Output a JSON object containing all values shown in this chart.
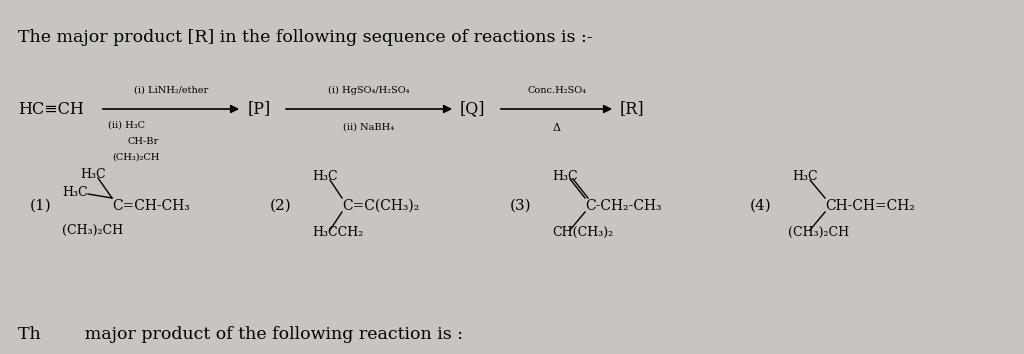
{
  "background_color": "#c8c4c0",
  "title_text": "The major product [R] in the following sequence of reactions is :-",
  "title_fontsize": 12.5,
  "reaction": {
    "hcch": "HC≡CH",
    "r1_top": "(i) LiNH₂/ether",
    "r1_bot1": "(ii) H₃C",
    "r1_bot2": "CH-Br",
    "r1_bot3": "(CH₃)₂CH",
    "p": "[P]",
    "r2_top": "(i) HgSO₄/H₂SO₄",
    "r2_bot": "(ii) NaBH₄",
    "q": "[Q]",
    "r3_top": "Conc.H₂SO₄",
    "r3_bot": "Δ",
    "r": "[R]"
  },
  "options": [
    {
      "num": "(1)",
      "top": "H₃C",
      "mid": "H₃C",
      "right": "C=CH-CH₃",
      "bot": "(CH₃)₂CH"
    },
    {
      "num": "(2)",
      "top": "H₃C",
      "right": "C=C(CH₃)₂",
      "bot": "H₃CCH₂"
    },
    {
      "num": "(3)",
      "top": "H₃C",
      "right": "C-CH₂-CH₃",
      "bot": "CH(CH₃)₂"
    },
    {
      "num": "(4)",
      "top": "H₃C",
      "right": "CH-CH=CH₂",
      "bot": "(CH₃)₂CH"
    }
  ],
  "bottom_text": "Th        major product of the following reaction is :"
}
